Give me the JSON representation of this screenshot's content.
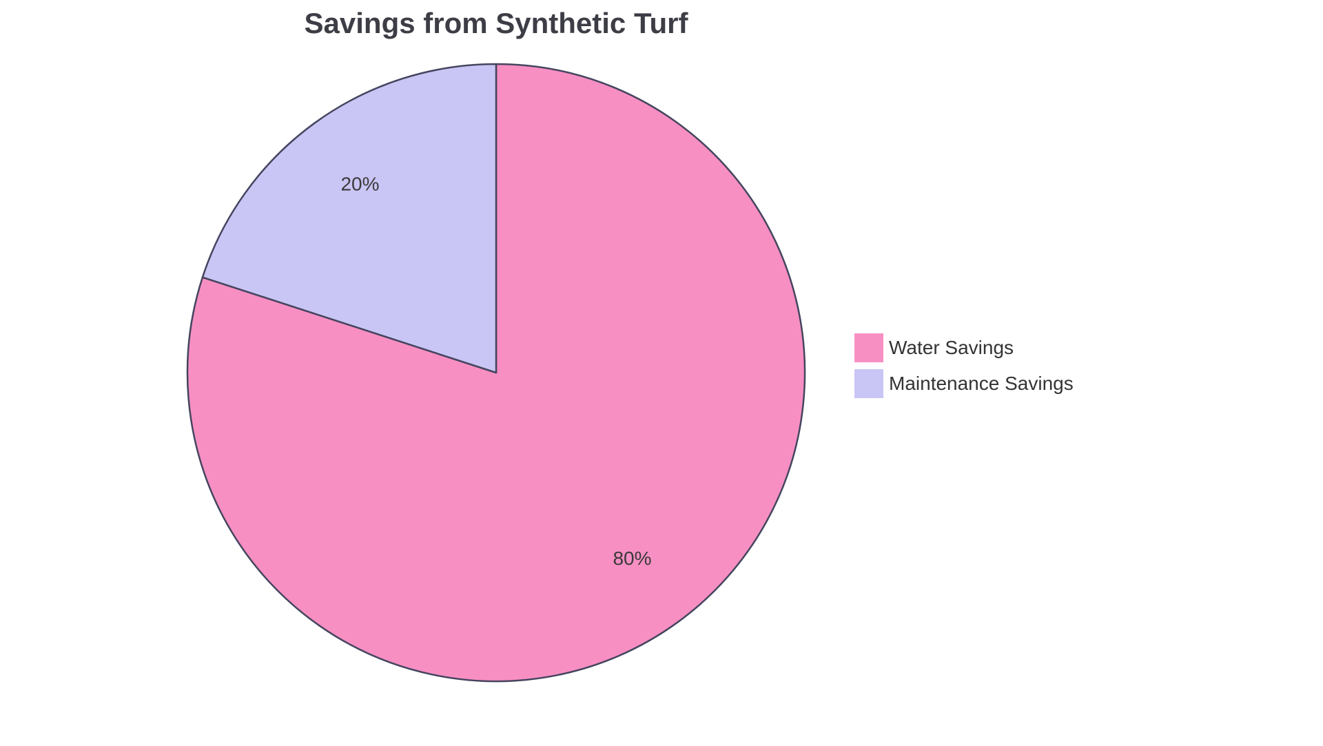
{
  "page": {
    "background": "#ffffff"
  },
  "chart_data": {
    "type": "pie",
    "title": "Savings from Synthetic Turf",
    "labels": [
      "Water Savings",
      "Maintenance Savings"
    ],
    "values": [
      80,
      20
    ],
    "value_labels": [
      "80%",
      "20%"
    ],
    "colors": [
      "#F78FC3",
      "#C9C5F4"
    ],
    "slice_stroke_color": "#45455F",
    "start_angle_deg": 0,
    "direction": "clockwise",
    "legend_position": "right",
    "legend": [
      {
        "label": "Water Savings",
        "color": "#F78FC3"
      },
      {
        "label": "Maintenance Savings",
        "color": "#C9C5F4"
      }
    ]
  }
}
